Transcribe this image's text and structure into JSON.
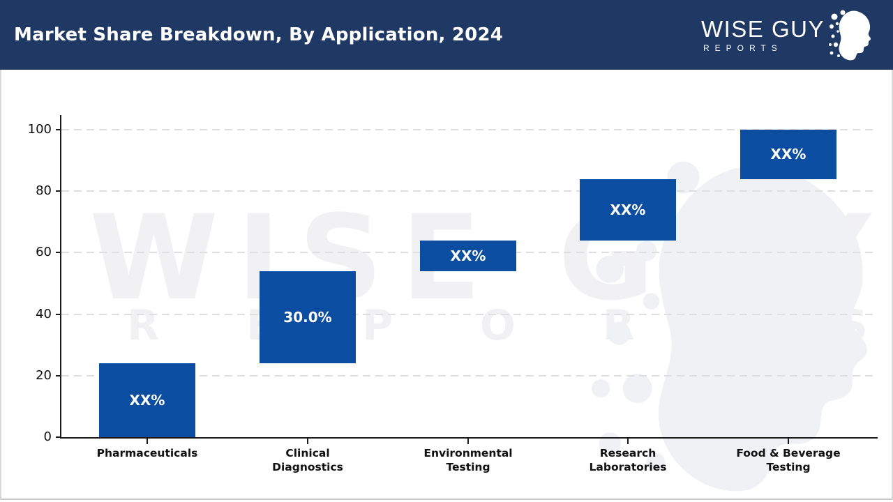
{
  "header": {
    "title": "Market Share Breakdown, By Application, 2024",
    "bg_color": "#1f3864",
    "logo": {
      "line1": "WISE GUY",
      "line2": "REPORTS"
    }
  },
  "watermark": {
    "line1": "WISE GUY",
    "line2": "R E P O R T S"
  },
  "chart_data": {
    "type": "bar",
    "subtype": "floating-waterfall-segments",
    "title": "Market Share Breakdown, By Application, 2024",
    "xlabel": "",
    "ylabel": "",
    "ylim": [
      0,
      100
    ],
    "yticks": [
      0,
      20,
      40,
      60,
      80,
      100
    ],
    "grid": "horizontal dashed",
    "legend": "none",
    "categories": [
      "Pharmaceuticals",
      "Clinical Diagnostics",
      "Environmental Testing",
      "Research Laboratories",
      "Food & Beverage Testing"
    ],
    "tick_labels": [
      "Pharmaceuticals",
      "Clinical\nDiagnostics",
      "Environmental\nTesting",
      "Research\nLaboratories",
      "Food & Beverage\nTesting"
    ],
    "series": [
      {
        "name": "Market share",
        "bars": [
          {
            "category": "Pharmaceuticals",
            "start": 0,
            "end": 24,
            "label": "XX%"
          },
          {
            "category": "Clinical Diagnostics",
            "start": 24,
            "end": 54,
            "label": "30.0%"
          },
          {
            "category": "Environmental Testing",
            "start": 54,
            "end": 64,
            "label": "XX%"
          },
          {
            "category": "Research Laboratories",
            "start": 64,
            "end": 84,
            "label": "XX%"
          },
          {
            "category": "Food & Beverage Testing",
            "start": 84,
            "end": 100,
            "label": "XX%"
          }
        ]
      }
    ],
    "colors": {
      "bar": "#0b4da0",
      "bar_label": "#ffffff",
      "grid": "#dedede",
      "axis": "#1a1a1a",
      "tick_label": "#111111"
    }
  }
}
